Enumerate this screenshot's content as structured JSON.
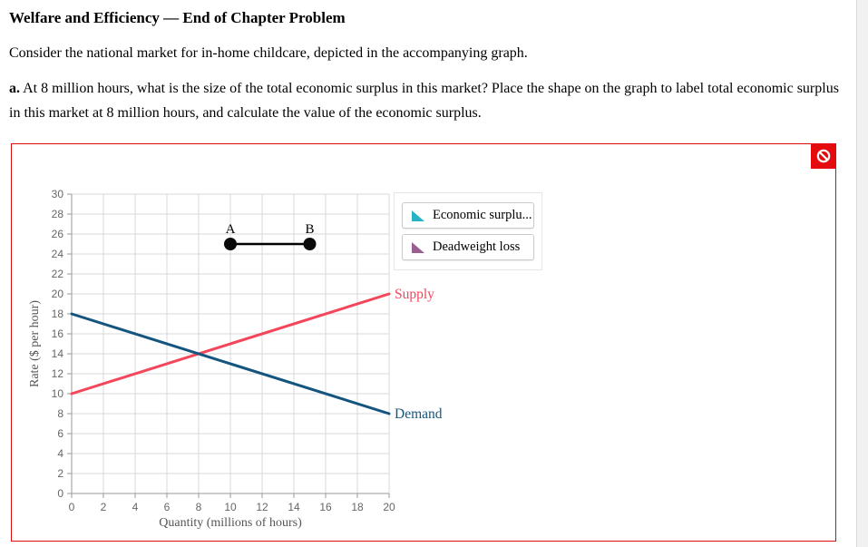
{
  "page": {
    "title": "Welfare and Efficiency — End of Chapter Problem",
    "intro": "Consider the national market for in-home childcare, depicted in the accompanying graph.",
    "part_a_label": "a.",
    "part_a_text": "At 8 million hours, what is the size of the total economic surplus in this market? Place the shape on the graph to label total economic surplus in this market at 8 million hours, and calculate the value of the economic surplus."
  },
  "panel": {
    "border_color": "#dd0a0a",
    "disabled_badge_color": "#e30b0e",
    "disabled_icon": "no-entry-icon"
  },
  "legend": {
    "items": [
      {
        "label": "Economic surplu...",
        "icon": "triangle-icon",
        "color": "#27b3c4"
      },
      {
        "label": "Deadweight loss",
        "icon": "triangle-icon",
        "color": "#9a5f90"
      }
    ]
  },
  "chart_data": {
    "type": "line",
    "title": "",
    "xlabel": "Quantity (millions of hours)",
    "ylabel": "Rate ($ per hour)",
    "xlim": [
      0,
      20
    ],
    "ylim": [
      0,
      30
    ],
    "xticks": [
      0,
      2,
      4,
      6,
      8,
      10,
      12,
      14,
      16,
      18,
      20
    ],
    "yticks": [
      0,
      2,
      4,
      6,
      8,
      10,
      12,
      14,
      16,
      18,
      20,
      22,
      24,
      26,
      28,
      30
    ],
    "grid": true,
    "series": [
      {
        "name": "Supply",
        "color": "#f4465a",
        "points": [
          [
            0,
            10
          ],
          [
            20,
            20
          ]
        ]
      },
      {
        "name": "Demand",
        "color": "#14557f",
        "points": [
          [
            0,
            18
          ],
          [
            20,
            8
          ]
        ]
      }
    ],
    "equilibrium_note": "Supply and Demand intersect at quantity 8, rate 14",
    "placed_shape": {
      "type": "segment",
      "color": "#000000",
      "points": [
        {
          "label": "A",
          "x": 10,
          "y": 25
        },
        {
          "label": "B",
          "x": 15,
          "y": 25
        }
      ]
    },
    "colors": {
      "gridline": "#d9d9d9",
      "axis": "#9a9a9a",
      "tick_label": "#666666",
      "axis_title": "#555555"
    }
  }
}
